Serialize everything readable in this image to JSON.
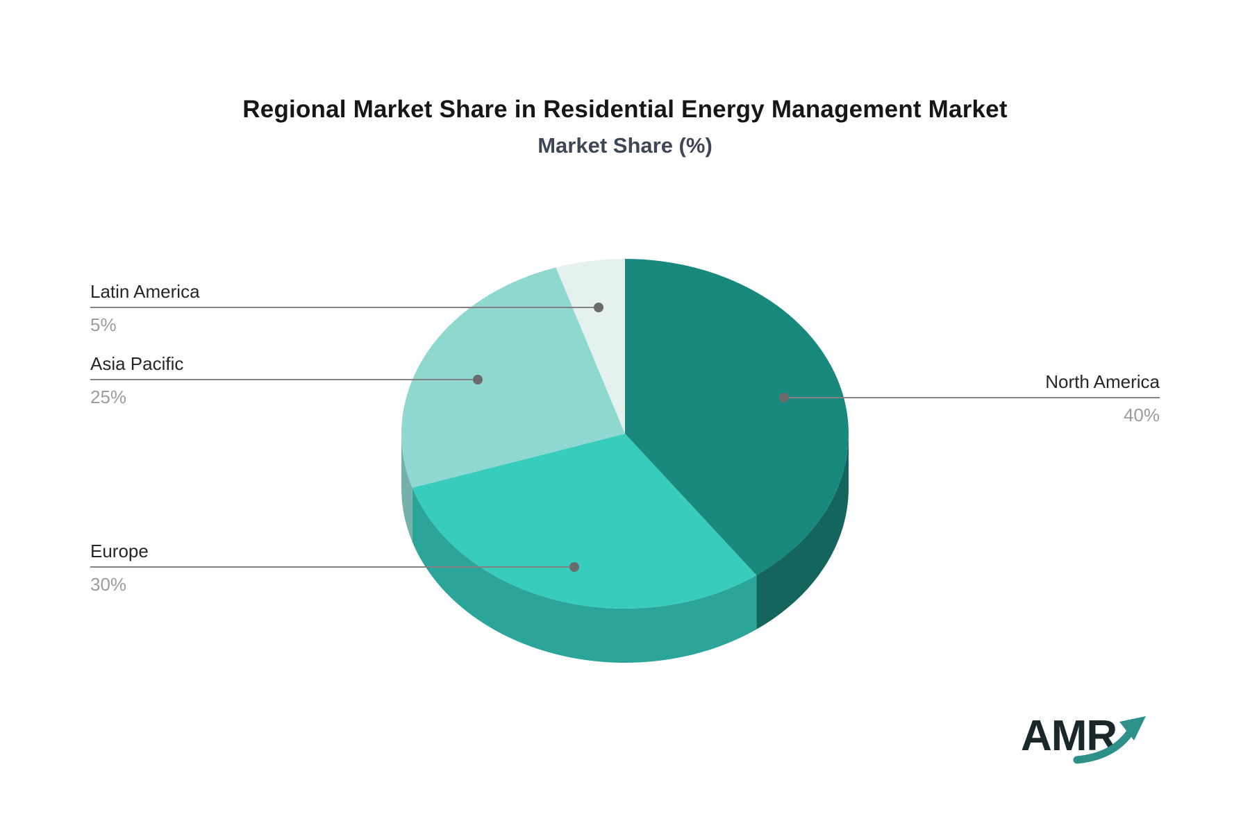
{
  "chart_data": {
    "type": "pie",
    "style": "3d",
    "title": "Regional Market Share in Residential Energy Management Market",
    "subtitle": "Market Share (%)",
    "start_angle_deg": 0,
    "direction": "clockwise",
    "legend_position": "leader-line-callouts",
    "slices": [
      {
        "label": "North America",
        "value": 40,
        "pct_label": "40%",
        "color": "#1a897d",
        "side_color": "#14665c"
      },
      {
        "label": "Europe",
        "value": 30,
        "pct_label": "30%",
        "color": "#37ccbc",
        "side_color": "#2ba499"
      },
      {
        "label": "Asia Pacific",
        "value": 25,
        "pct_label": "25%",
        "color": "#8fd8d0",
        "side_color": "#76b0aa"
      },
      {
        "label": "Latin America",
        "value": 5,
        "pct_label": "5%",
        "color": "#e4f1ef",
        "side_color": "#bcd9d5"
      }
    ],
    "leader_line_color": "#828282",
    "leader_dot_color": "#6b6b6b",
    "label_color": "#262626",
    "pct_color": "#9c9c9c"
  },
  "logo": {
    "text": "AMR",
    "text_color": "#1b282b",
    "arrow_color": "#2d918a"
  }
}
